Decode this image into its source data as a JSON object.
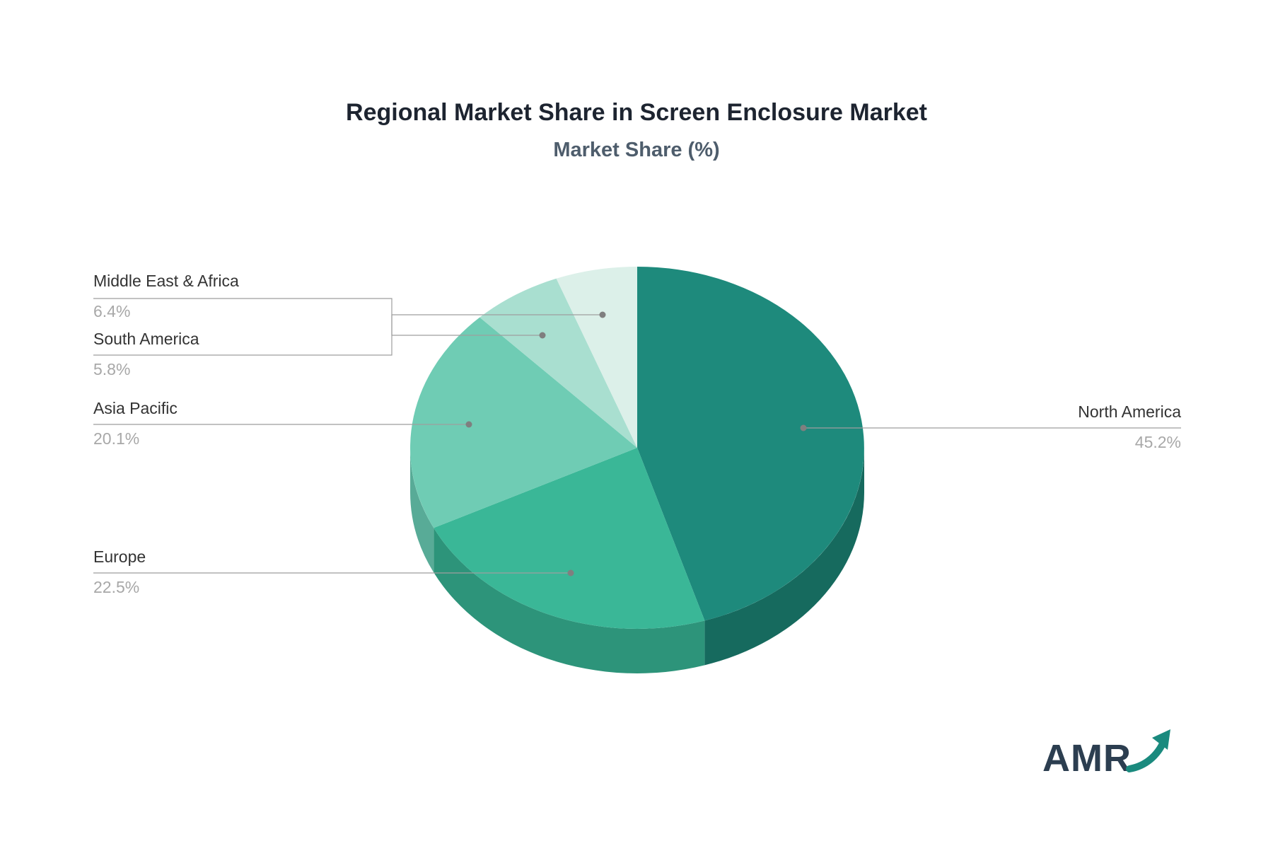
{
  "title": "Regional Market Share in Screen Enclosure Market",
  "subtitle": "Market Share (%)",
  "logo": {
    "text": "AMR"
  },
  "chart_data": {
    "type": "pie",
    "title": "Regional Market Share in Screen Enclosure Market",
    "subtitle": "Market Share (%)",
    "unit": "%",
    "style": "3d-pie",
    "order": "clockwise-from-top",
    "legend_position": "callout-labels",
    "slices": [
      {
        "label": "North America",
        "value": 45.2,
        "display": "45.2%",
        "color": "#1e8a7c",
        "rim_color": "#166a5e"
      },
      {
        "label": "Europe",
        "value": 22.5,
        "display": "22.5%",
        "color": "#3ab797",
        "rim_color": "#2d947a"
      },
      {
        "label": "Asia Pacific",
        "value": 20.1,
        "display": "20.1%",
        "color": "#6fccb4",
        "rim_color": "#58ab97"
      },
      {
        "label": "Middle East & Africa",
        "value": 6.4,
        "display": "6.4%",
        "color": "#a9dfd0",
        "rim_color": "#8cc4b5"
      },
      {
        "label": "South America",
        "value": 5.8,
        "display": "5.8%",
        "color": "#dcf0e9",
        "rim_color": "#bcd9d1"
      }
    ]
  }
}
